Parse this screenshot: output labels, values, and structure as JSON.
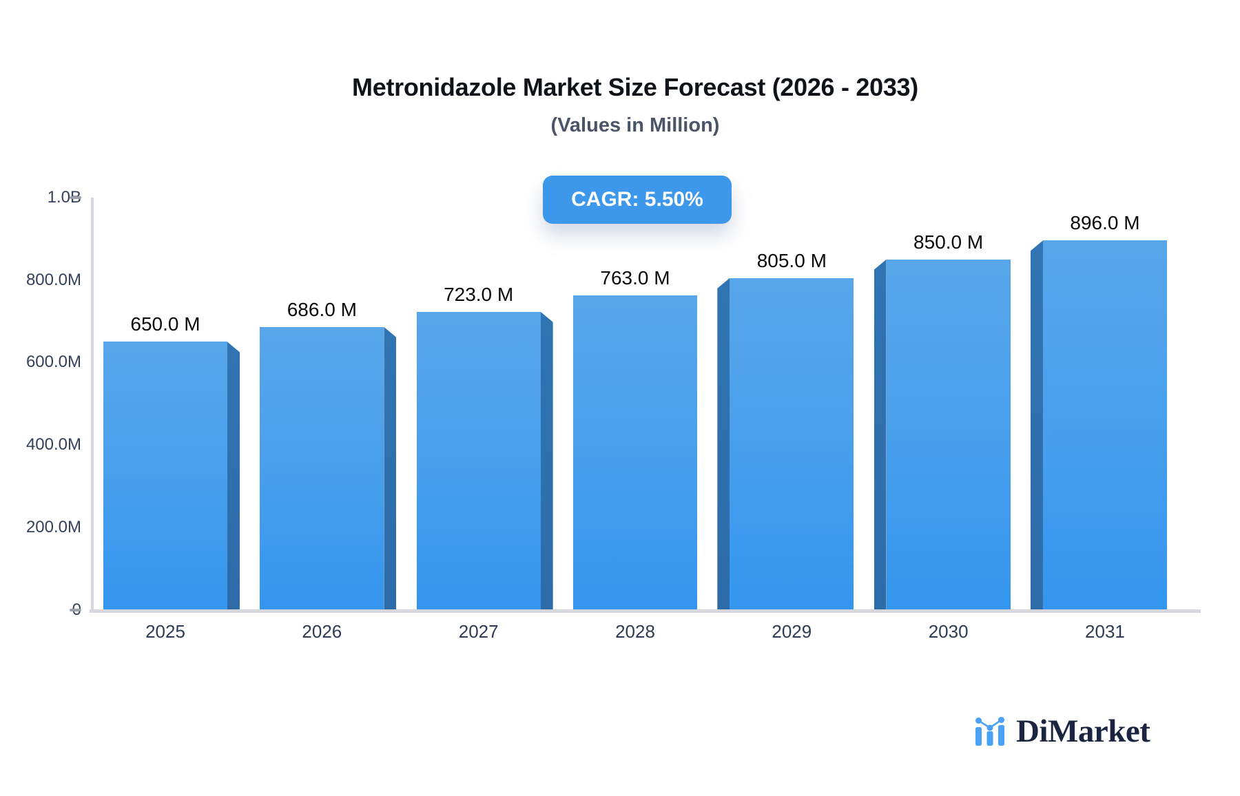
{
  "title": "Metronidazole Market Size Forecast (2026 - 2033)",
  "subtitle": "(Values in Million)",
  "badge": {
    "label": "CAGR: 5.50%"
  },
  "logo": {
    "name": "DiMarket",
    "icon": "mini-bar-chart-icon"
  },
  "colors": {
    "background": "#ffffff",
    "title": "#101318",
    "subtitle": "#4a5568",
    "badge_bg": "#3d97ea",
    "badge_text": "#ffffff",
    "bar_face_top": "#58a6ea",
    "bar_face_mid": "#4aa0ec",
    "bar_face_bottom": "#3496ef",
    "bar_side_top": "#3074b3",
    "bar_side_bottom": "#2d6ca9",
    "axis_line": "#d6d8dd",
    "tick": "#9aa1ab",
    "y_axis_label": "#33415c",
    "x_axis_label": "#2e3b55",
    "value_label": "#0b0b0b",
    "logo_text": "#1b2440",
    "logo_icon": "#4ba1f6"
  },
  "chart_data": {
    "type": "bar",
    "title": "Metronidazole Market Size Forecast (2026 - 2033)",
    "subtitle": "(Values in Million)",
    "unit": "Million",
    "cagr_label": "CAGR: 5.50%",
    "categories": [
      "2025",
      "2026",
      "2027",
      "2028",
      "2029",
      "2030",
      "2031"
    ],
    "values": [
      650.0,
      686.0,
      723.0,
      763.0,
      805.0,
      850.0,
      896.0
    ],
    "bar_labels": [
      "650.0 M",
      "686.0 M",
      "723.0 M",
      "763.0 M",
      "805.0 M",
      "850.0 M",
      "896.0 M"
    ],
    "xlabel": "",
    "ylabel": "",
    "ylim": [
      0,
      1000
    ],
    "ytick_labels": [
      "0",
      "200.0M",
      "400.0M",
      "600.0M",
      "800.0M",
      "1.0B"
    ],
    "ytick_values": [
      0,
      200,
      400,
      600,
      800,
      1000
    ],
    "grid": false,
    "legend_position": "none",
    "style": "3d-bars-center-perspective"
  }
}
